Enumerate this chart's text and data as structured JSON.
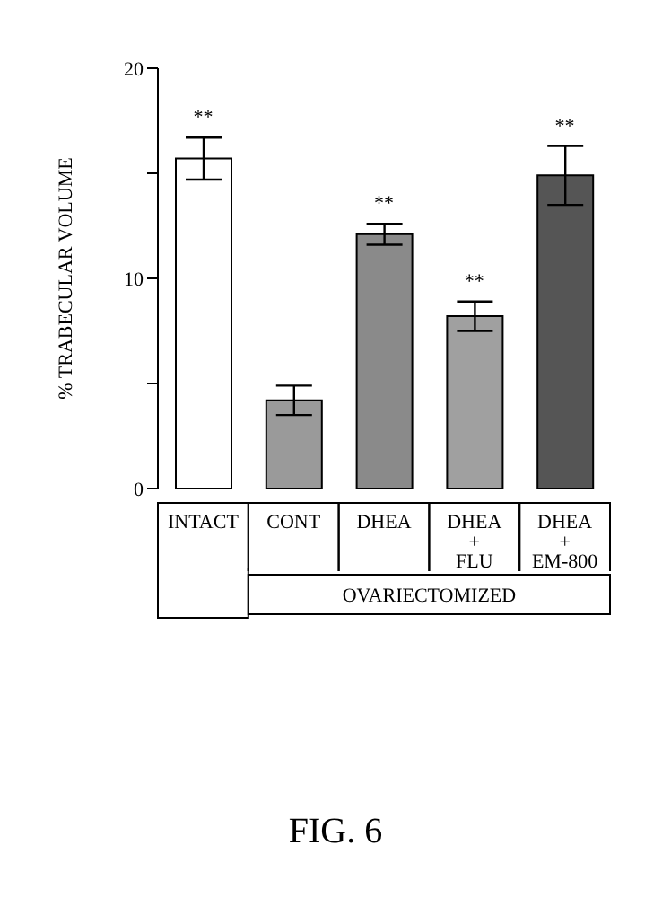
{
  "chart_data": {
    "type": "bar",
    "ylabel": "% TRABECULAR VOLUME",
    "categories": [
      "INTACT",
      "CONT",
      "DHEA",
      "DHEA\n+\nFLU",
      "DHEA\n+\nEM-800"
    ],
    "values": [
      15.7,
      4.2,
      12.1,
      8.2,
      14.9
    ],
    "errors": [
      1.0,
      0.7,
      0.5,
      0.7,
      1.4
    ],
    "colors": [
      "#ffffff",
      "#9a9a9a",
      "#8a8a8a",
      "#a0a0a0",
      "#555555"
    ],
    "ylim": [
      0,
      20
    ],
    "yticks": [
      0,
      {
        "value": 5,
        "label": null
      },
      10,
      {
        "value": 15,
        "label": null
      },
      20
    ],
    "grid": false,
    "legend": false,
    "annotations": [
      {
        "text": "**",
        "x": "INTACT",
        "y": 15.7
      },
      {
        "text": "**",
        "x": "DHEA",
        "y": 12.1
      },
      {
        "text": "**",
        "x": "DHEA\n+\nFLU",
        "y": 8.2
      },
      {
        "text": "**",
        "x": "DHEA\n+\nEM-800",
        "y": 14.9
      },
      "OVARIECTOMIZED",
      "FIG. 6"
    ]
  }
}
